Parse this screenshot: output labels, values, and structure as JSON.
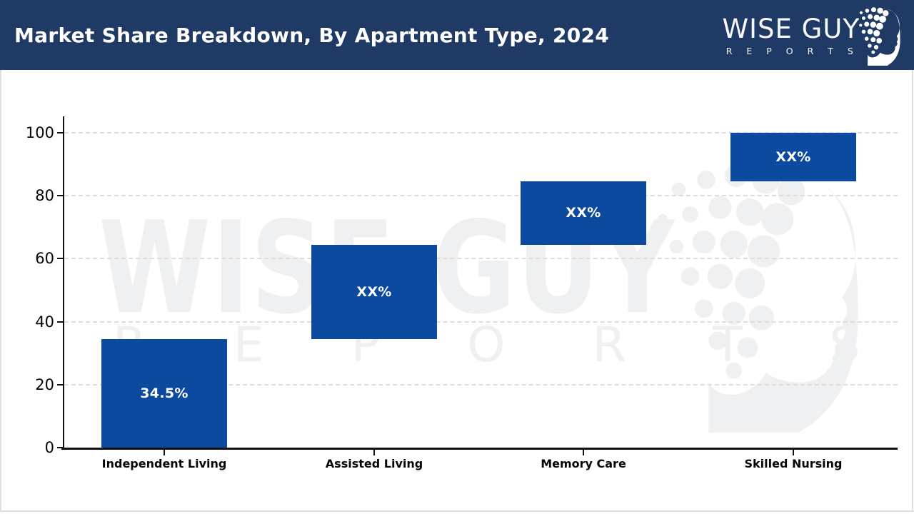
{
  "header": {
    "title": "Market Share Breakdown, By Apartment Type, 2024",
    "brand": {
      "line1": "WISE GUY",
      "line2": "R E P O R T S"
    }
  },
  "watermark": {
    "line1": "WISE GUY",
    "line2": "R E P O R T S"
  },
  "colors": {
    "header_bg": "#203A66",
    "bar": "#0C4A9F",
    "grid": "#DDDDDD",
    "axis": "#111111",
    "bar_label": "#FFFFFF",
    "watermark": "#EFF0F2"
  },
  "chart_data": {
    "type": "bar",
    "variant": "waterfall",
    "title": "Market Share Breakdown, By Apartment Type, 2024",
    "categories": [
      "Independent Living",
      "Assisted Living",
      "Memory Care",
      "Skilled Nursing"
    ],
    "segments": [
      {
        "category": "Independent Living",
        "start": 0,
        "end": 34.5,
        "label": "34.5%"
      },
      {
        "category": "Assisted Living",
        "start": 34.5,
        "end": 64.5,
        "label": "XX%"
      },
      {
        "category": "Memory Care",
        "start": 64.5,
        "end": 84.5,
        "label": "XX%"
      },
      {
        "category": "Skilled Nursing",
        "start": 84.5,
        "end": 100,
        "label": "XX%"
      }
    ],
    "ylim": [
      0,
      100
    ],
    "yticks": [
      0,
      20,
      40,
      60,
      80,
      100
    ],
    "xlabel": "",
    "ylabel": "",
    "grid": "horizontal-dashed",
    "legend": "none"
  }
}
